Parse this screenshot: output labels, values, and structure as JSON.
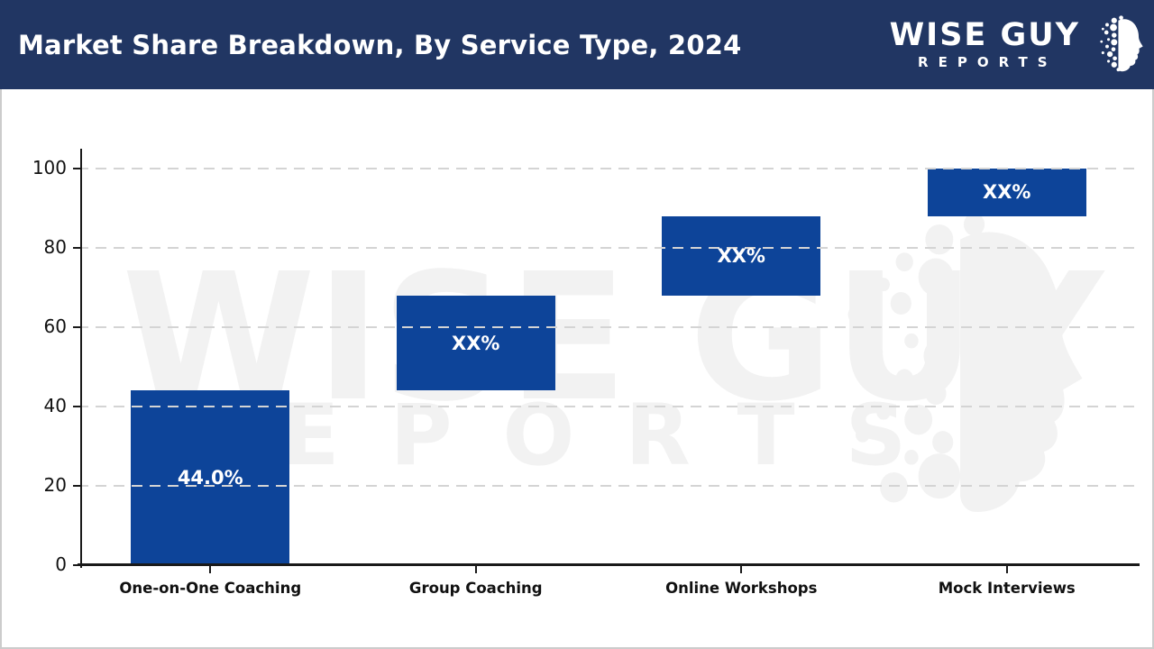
{
  "header": {
    "title": "Market Share Breakdown, By Service Type, 2024",
    "logo": {
      "line1": "WISE GUY",
      "line2": "REPORTS"
    }
  },
  "watermark": {
    "line1": "WISE GUY",
    "line2": "REPORTS"
  },
  "chart_data": {
    "type": "bar",
    "subtype": "waterfall",
    "title": "Market Share Breakdown, By Service Type, 2024",
    "categories": [
      "One-on-One Coaching",
      "Group Coaching",
      "Online Workshops",
      "Mock Interviews"
    ],
    "segments": [
      {
        "category": "One-on-One Coaching",
        "start": 0,
        "end": 44,
        "label": "44.0%"
      },
      {
        "category": "Group Coaching",
        "start": 44,
        "end": 68,
        "label": "XX%"
      },
      {
        "category": "Online Workshops",
        "start": 68,
        "end": 88,
        "label": "XX%"
      },
      {
        "category": "Mock Interviews",
        "start": 88,
        "end": 100,
        "label": "XX%"
      }
    ],
    "ylim": [
      0,
      100
    ],
    "yticks": [
      0,
      20,
      40,
      60,
      80,
      100
    ],
    "xlabel": "",
    "ylabel": "",
    "grid": "horizontal dashed",
    "legend": "none",
    "bar_color": "#0d4499",
    "bar_label_color": "#ffffff"
  },
  "colors": {
    "header_bg": "#213663",
    "bar": "#0d4499",
    "gridline": "#d4d4d4",
    "axis": "#1a1a1a",
    "watermark": "#f2f2f2",
    "page_bg": "#ffffff",
    "frame_border": "#cccccc"
  }
}
